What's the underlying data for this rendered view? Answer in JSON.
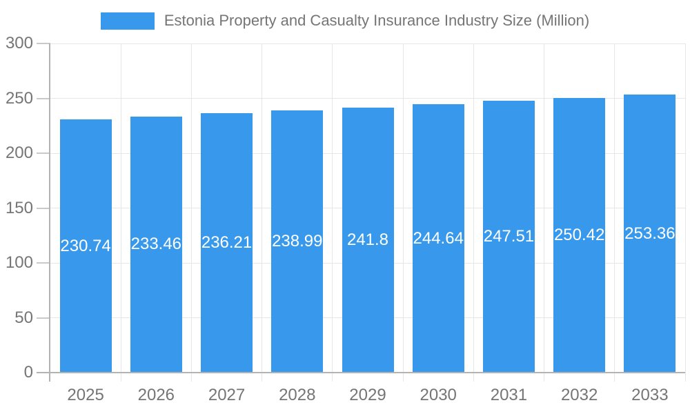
{
  "chart_data": {
    "type": "bar",
    "title": "Estonia Property and Casualty Insurance Industry Size (Million)",
    "categories": [
      "2025",
      "2026",
      "2027",
      "2028",
      "2029",
      "2030",
      "2031",
      "2032",
      "2033"
    ],
    "series": [
      {
        "name": "Estonia Property and Casualty Insurance Industry Size (Million)",
        "values": [
          230.74,
          233.46,
          236.21,
          238.99,
          241.8,
          244.64,
          247.51,
          250.42,
          253.36
        ]
      }
    ],
    "value_labels": [
      "230.74",
      "233.46",
      "236.21",
      "238.99",
      "241.8",
      "244.64",
      "247.51",
      "250.42",
      "253.36"
    ],
    "xlabel": "",
    "ylabel": "",
    "ylim": [
      0,
      300
    ],
    "ytick_labels": [
      "0",
      "50",
      "100",
      "150",
      "200",
      "250",
      "300"
    ],
    "grid": true,
    "legend_position": "top",
    "colors": {
      "bar": "#3899EC",
      "value_label": "#FFFFFF",
      "axis": "#B3B3B3",
      "tick": "#C9C9C9",
      "grid": "#E6E6E6",
      "text": "#757575",
      "background": "#FFFFFF"
    }
  }
}
